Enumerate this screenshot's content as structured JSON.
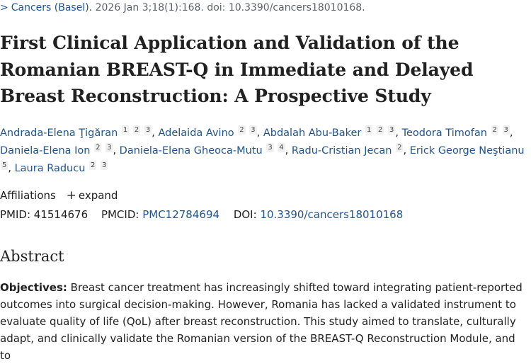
{
  "citation": {
    "journal": "Cancers (Basel).",
    "details": "2026 Jan 3;18(1):168. doi: 10.3390/cancers18010168."
  },
  "title": "First Clinical Application and Validation of the Romanian BREAST-Q in Immediate and Delayed Breast Reconstruction: A Prospective Study",
  "authors": [
    {
      "name": "Andrada-Elena Ţigăran",
      "affs": [
        "1",
        "2",
        "3"
      ]
    },
    {
      "name": "Adelaida Avino",
      "affs": [
        "2",
        "3"
      ]
    },
    {
      "name": "Abdalah Abu-Baker",
      "affs": [
        "1",
        "2",
        "3"
      ]
    },
    {
      "name": "Teodora Timofan",
      "affs": [
        "2",
        "3"
      ]
    },
    {
      "name": "Daniela-Elena Ion",
      "affs": [
        "2",
        "3"
      ]
    },
    {
      "name": "Daniela-Elena Gheoca-Mutu",
      "affs": [
        "3",
        "4"
      ]
    },
    {
      "name": "Radu-Cristian Jecan",
      "affs": [
        "2"
      ]
    },
    {
      "name": "Erick George Neştianu",
      "affs": [
        "5"
      ]
    },
    {
      "name": "Laura Raducu",
      "affs": [
        "2",
        "3"
      ]
    }
  ],
  "affiliations": {
    "label": "Affiliations",
    "toggle": "expand"
  },
  "ids": {
    "pmid_label": "PMID:",
    "pmid": "41514676",
    "pmcid_label": "PMCID:",
    "pmcid": "PMC12784694",
    "doi_label": "DOI:",
    "doi": "10.3390/cancers18010168"
  },
  "abstract": {
    "heading": "Abstract",
    "objectives_label": "Objectives:",
    "objectives_text": "Breast cancer treatment has increasingly shifted toward integrating patient-reported outcomes into surgical decision-making. However, Romania has lacked a validated instrument to evaluate quality of life (QoL) after breast reconstruction. This study aimed to translate, culturally adapt, and clinically validate the Romanian version of the BREAST-Q Reconstruction Module, and to"
  }
}
